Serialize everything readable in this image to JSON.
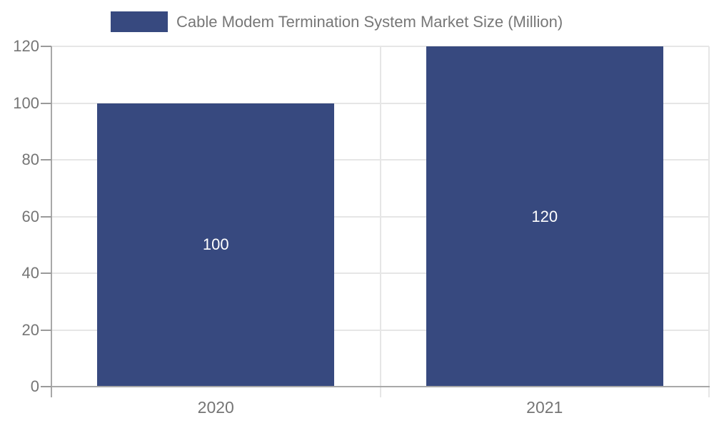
{
  "legend": {
    "label": "Cable Modem Termination System Market Size (Million)"
  },
  "colors": {
    "bar": "#37497F",
    "grid": "#e6e6e6",
    "axis": "#a8a8a8",
    "tick_label": "#757575",
    "legend_text": "#777777",
    "value_label": "#ffffff"
  },
  "chart_data": {
    "type": "bar",
    "title": "",
    "xlabel": "",
    "ylabel": "",
    "categories": [
      "2020",
      "2021"
    ],
    "series": [
      {
        "name": "Cable Modem Termination System Market Size (Million)",
        "values": [
          100,
          120
        ]
      }
    ],
    "value_labels": [
      "100",
      "120"
    ],
    "ylim": [
      0,
      120
    ],
    "yticks": [
      0,
      20,
      40,
      60,
      80,
      100,
      120
    ],
    "grid": true,
    "legend_position": "top-center",
    "value_label_position": "inside-center"
  }
}
